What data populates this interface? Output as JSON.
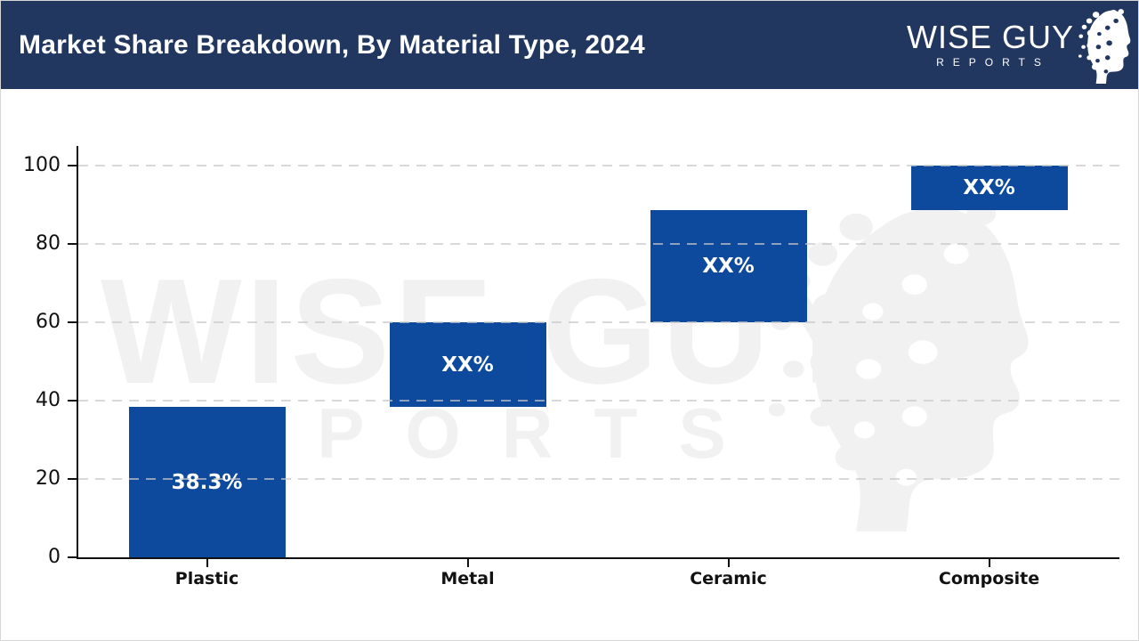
{
  "header": {
    "title": "Market Share Breakdown, By Material Type, 2024",
    "logo": {
      "line1": "WISE GUY",
      "line2": "REPORTS"
    }
  },
  "watermark": {
    "line1": "WISE GUY",
    "line2": "REPORTS"
  },
  "chart_data": {
    "type": "bar",
    "subtype": "waterfall",
    "title": "Market Share Breakdown, By Material Type, 2024",
    "categories": [
      "Plastic",
      "Metal",
      "Ceramic",
      "Composite"
    ],
    "segments": [
      {
        "category": "Plastic",
        "start": 0,
        "end": 38.3,
        "label": "38.3%"
      },
      {
        "category": "Metal",
        "start": 38.3,
        "end": 60.0,
        "label": "XX%"
      },
      {
        "category": "Ceramic",
        "start": 60.0,
        "end": 88.6,
        "label": "XX%"
      },
      {
        "category": "Composite",
        "start": 88.6,
        "end": 100.0,
        "label": "XX%"
      }
    ],
    "xlabel": "",
    "ylabel": "",
    "yticks": [
      0,
      20,
      40,
      60,
      80,
      100
    ],
    "ylim": [
      0,
      105
    ],
    "grid": "horizontal-dashed",
    "legend": "none",
    "bar_color": "#0d4a9e",
    "bar_label_color": "#ffffff"
  },
  "colors": {
    "header_bg": "#21375f",
    "bar": "#0d4a9e",
    "grid": "#c7c7c7",
    "axis": "#111111",
    "watermark": "#f1f1f1",
    "title_text": "#ffffff"
  }
}
